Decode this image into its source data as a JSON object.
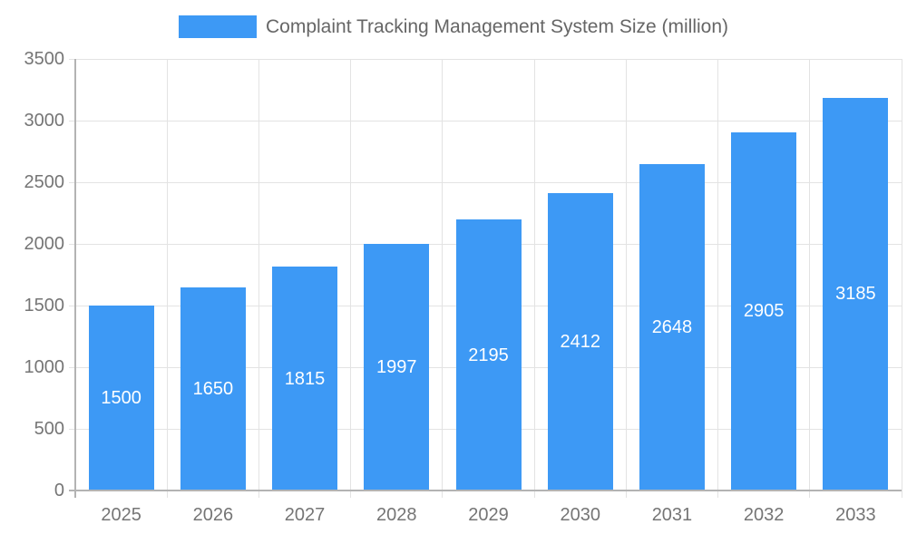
{
  "chart_data": {
    "type": "bar",
    "title": "Complaint Tracking Management System Size (million)",
    "categories": [
      "2025",
      "2026",
      "2027",
      "2028",
      "2029",
      "2030",
      "2031",
      "2032",
      "2033"
    ],
    "values": [
      1500,
      1650,
      1815,
      1997,
      2195,
      2412,
      2648,
      2905,
      3185
    ],
    "series": [
      {
        "name": "Complaint Tracking Management System Size (million)",
        "values": [
          1500,
          1650,
          1815,
          1997,
          2195,
          2412,
          2648,
          2905,
          3185
        ]
      }
    ],
    "xlabel": "",
    "ylabel": "",
    "ylim": [
      0,
      3500
    ],
    "yticks": [
      0,
      500,
      1000,
      1500,
      2000,
      2500,
      3000,
      3500
    ],
    "grid": true,
    "legend_position": "top-center",
    "value_labels": "centered-inside-bars",
    "colors": {
      "bar": "#3D99F5",
      "value_label": "#ffffff",
      "axis_text": "#757575",
      "title_text": "#666666",
      "gridline": "#e3e3e3",
      "axis_line": "#b3b3b3"
    }
  }
}
